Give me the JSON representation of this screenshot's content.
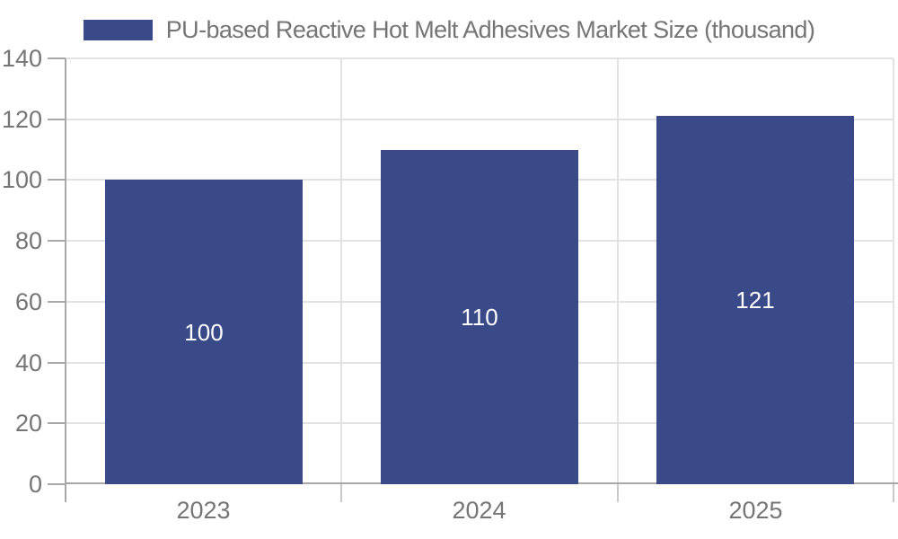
{
  "chart_data": {
    "type": "bar",
    "title": "PU-based Reactive Hot Melt Adhesives Market Size (thousand)",
    "legend": {
      "position": "top",
      "label": "PU-based Reactive Hot Melt Adhesives Market Size (thousand)"
    },
    "categories": [
      "2023",
      "2024",
      "2025"
    ],
    "series": [
      {
        "name": "PU-based Reactive Hot Melt Adhesives Market Size (thousand)",
        "values": [
          100,
          110,
          121
        ]
      }
    ],
    "value_labels": [
      "100",
      "110",
      "121"
    ],
    "xlabel": "",
    "ylabel": "",
    "ylim": [
      0,
      140
    ],
    "y_ticks": [
      0,
      20,
      40,
      60,
      80,
      100,
      120,
      140
    ],
    "grid": true,
    "legend_position": "top",
    "colors": {
      "bar": "#3A4A88",
      "bar_label_text": "#FFFFFF",
      "axis_text": "#757575",
      "axis_line": "#A8A8A8",
      "gridline": "#E2E2E2",
      "boundary_tick": "#C9C9C9",
      "background": "#FFFFFF"
    }
  }
}
